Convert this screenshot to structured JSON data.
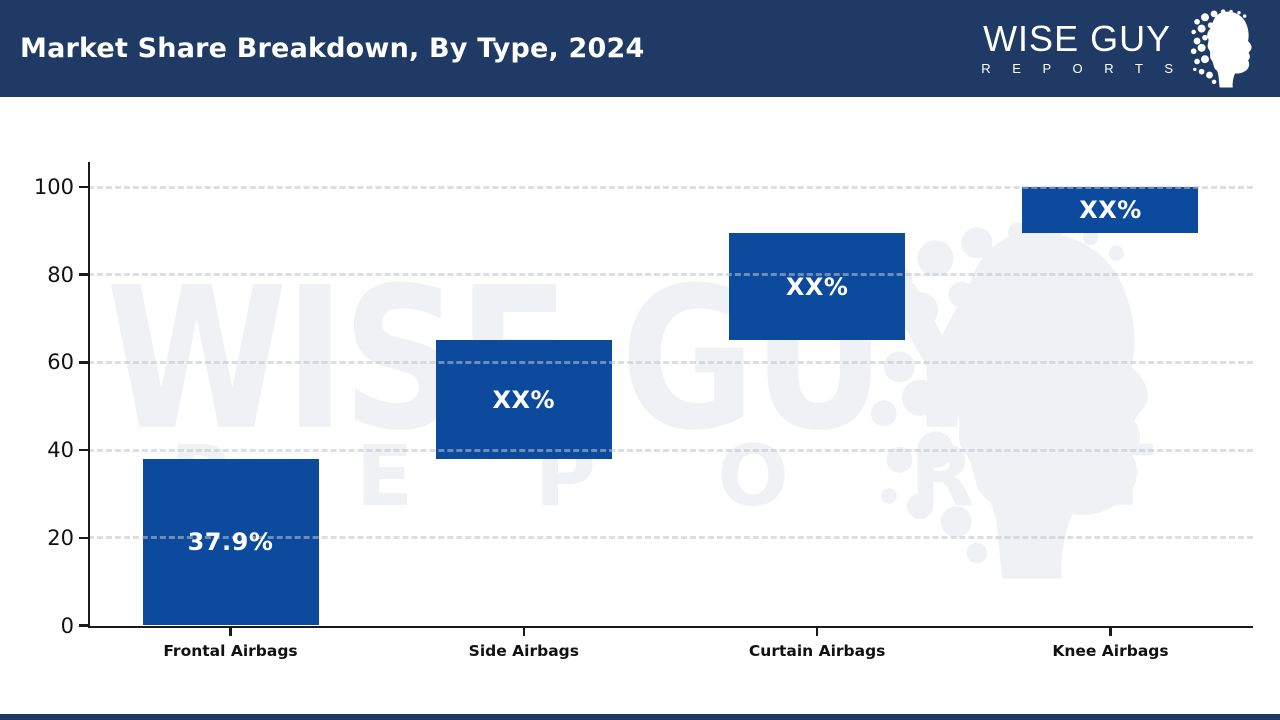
{
  "header": {
    "title": "Market Share Breakdown, By Type, 2024",
    "logo": {
      "brand": "WISE GUY",
      "sub": "R E P O R T S"
    }
  },
  "watermark": {
    "brand": "WISE GUY",
    "sub": "R E P O R T S"
  },
  "chart_data": {
    "type": "bar",
    "subtype": "waterfall",
    "title": "Market Share Breakdown, By Type, 2024",
    "categories": [
      "Frontal Airbags",
      "Side Airbags",
      "Curtain Airbags",
      "Knee Airbags"
    ],
    "segments": [
      {
        "category": "Frontal Airbags",
        "start": 0,
        "end": 37.9,
        "label": "37.9%"
      },
      {
        "category": "Side Airbags",
        "start": 37.9,
        "end": 65.1,
        "label": "XX%"
      },
      {
        "category": "Curtain Airbags",
        "start": 65.1,
        "end": 89.5,
        "label": "XX%"
      },
      {
        "category": "Knee Airbags",
        "start": 89.5,
        "end": 100,
        "label": "XX%"
      }
    ],
    "y_ticks": [
      0,
      20,
      40,
      60,
      80,
      100
    ],
    "ylim": [
      0,
      106
    ],
    "xlabel": "",
    "ylabel": "",
    "grid": "horizontal-dashed",
    "legend": "none",
    "bar_color": "#0c4a9e",
    "bar_label_color": "#ffffff"
  },
  "colors": {
    "header_bg": "#203a66",
    "footer_bg": "#203a66",
    "page_bg": "#ffffff",
    "axis": "#1a1a1a",
    "gridline": "#d9dade",
    "watermark": "#f0f1f4",
    "title_text": "#ffffff",
    "logo_text": "#ffffff"
  }
}
